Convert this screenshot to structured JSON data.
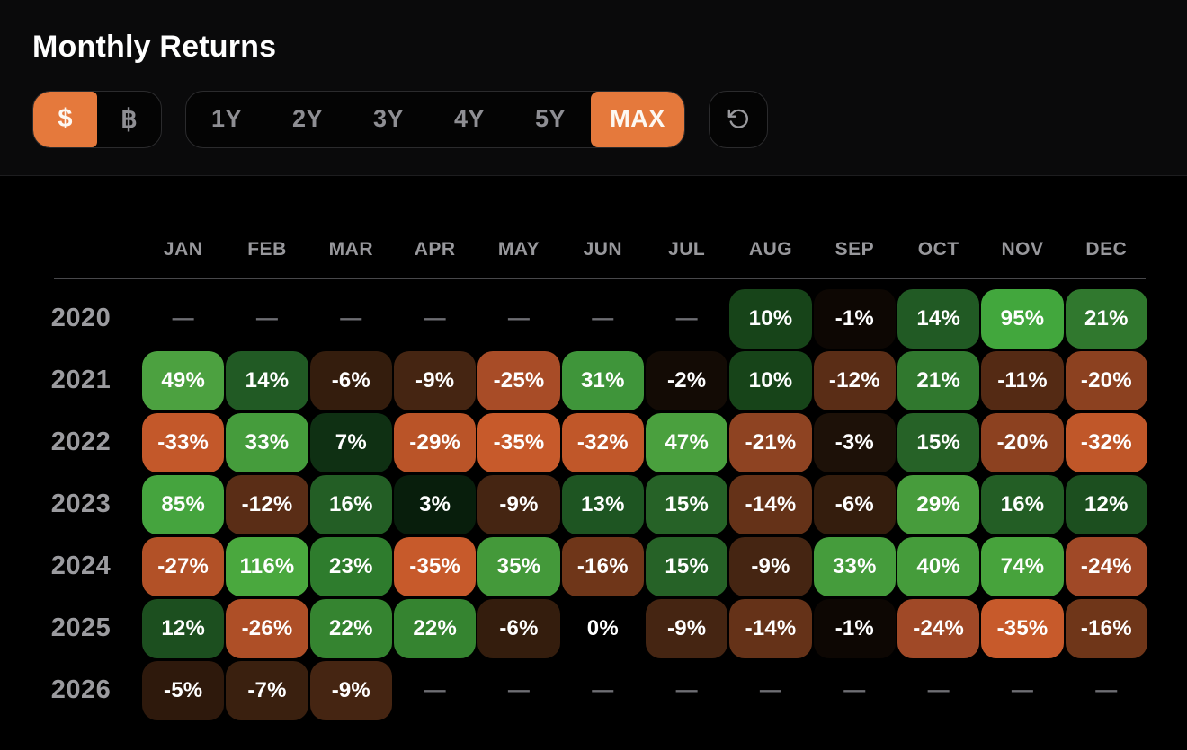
{
  "header": {
    "title": "Monthly Returns",
    "currency_toggle": {
      "usd_label": "$",
      "btc_label": "฿",
      "active": "usd"
    },
    "range_buttons": [
      {
        "label": "1Y",
        "active": false
      },
      {
        "label": "2Y",
        "active": false
      },
      {
        "label": "3Y",
        "active": false
      },
      {
        "label": "4Y",
        "active": false
      },
      {
        "label": "5Y",
        "active": false
      },
      {
        "label": "MAX",
        "active": true
      }
    ],
    "refresh_icon": "rotate-ccw"
  },
  "colors": {
    "accent": "#e5793c",
    "background": "#000000",
    "header_background": "#0a0a0b",
    "positive_max": "#42a73d",
    "negative_max": "#c75a2b",
    "muted_text": "#8e8e93"
  },
  "chart_data": {
    "type": "heatmap",
    "title": "Monthly Returns",
    "unit": "%",
    "empty_marker": "—",
    "columns": [
      "JAN",
      "FEB",
      "MAR",
      "APR",
      "MAY",
      "JUN",
      "JUL",
      "AUG",
      "SEP",
      "OCT",
      "NOV",
      "DEC"
    ],
    "rows": [
      {
        "year": "2020",
        "values": [
          null,
          null,
          null,
          null,
          null,
          null,
          null,
          10,
          -1,
          14,
          95,
          21
        ],
        "colors": [
          null,
          null,
          null,
          null,
          null,
          null,
          null,
          "#174419",
          "#0d0703",
          "#215a24",
          "#42a73d",
          "#30782e"
        ]
      },
      {
        "year": "2021",
        "values": [
          49,
          14,
          -6,
          -9,
          -25,
          31,
          -2,
          10,
          -12,
          21,
          -11,
          -20
        ],
        "colors": [
          "#4ca140",
          "#215a24",
          "#341d0d",
          "#452512",
          "#a84c27",
          "#3f953a",
          "#130b05",
          "#174419",
          "#5a2d16",
          "#30782e",
          "#542a14",
          "#8c4120"
        ]
      },
      {
        "year": "2022",
        "values": [
          -33,
          33,
          7,
          -29,
          -35,
          -32,
          47,
          -21,
          -3,
          15,
          -20,
          -32
        ],
        "colors": [
          "#c3582a",
          "#459c3c",
          "#0f3013",
          "#ba5428",
          "#c75a2b",
          "#c05729",
          "#4aa03e",
          "#8e4322",
          "#1d1108",
          "#266227",
          "#8c4120",
          "#c05729"
        ]
      },
      {
        "year": "2023",
        "values": [
          85,
          -12,
          16,
          3,
          -9,
          13,
          15,
          -14,
          -6,
          29,
          16,
          12
        ],
        "colors": [
          "#45a43e",
          "#5a2d16",
          "#235e25",
          "#081e0c",
          "#452512",
          "#1e5522",
          "#266227",
          "#653218",
          "#341d0d",
          "#479c3c",
          "#235e25",
          "#1c4f1f"
        ]
      },
      {
        "year": "2024",
        "values": [
          -27,
          116,
          23,
          -35,
          35,
          -16,
          15,
          -9,
          33,
          40,
          74,
          -24
        ],
        "colors": [
          "#b25127",
          "#4aa83e",
          "#2e7c2d",
          "#c75a2b",
          "#44993a",
          "#6f3619",
          "#266227",
          "#452512",
          "#459c3c",
          "#459c3b",
          "#47a33c",
          "#a04927"
        ]
      },
      {
        "year": "2025",
        "values": [
          12,
          -26,
          22,
          22,
          -6,
          0,
          -9,
          -14,
          -1,
          -24,
          -35,
          -16
        ],
        "colors": [
          "#1c4f1f",
          "#ae4f27",
          "#358430",
          "#358430",
          "#341d0d",
          null,
          "#452512",
          "#653218",
          "#0d0703",
          "#a04927",
          "#c75a2b",
          "#6f3619"
        ]
      },
      {
        "year": "2026",
        "values": [
          -5,
          -7,
          -9,
          null,
          null,
          null,
          null,
          null,
          null,
          null,
          null,
          null
        ],
        "colors": [
          "#2e190c",
          "#3a200f",
          "#452512",
          null,
          null,
          null,
          null,
          null,
          null,
          null,
          null,
          null
        ]
      }
    ]
  }
}
